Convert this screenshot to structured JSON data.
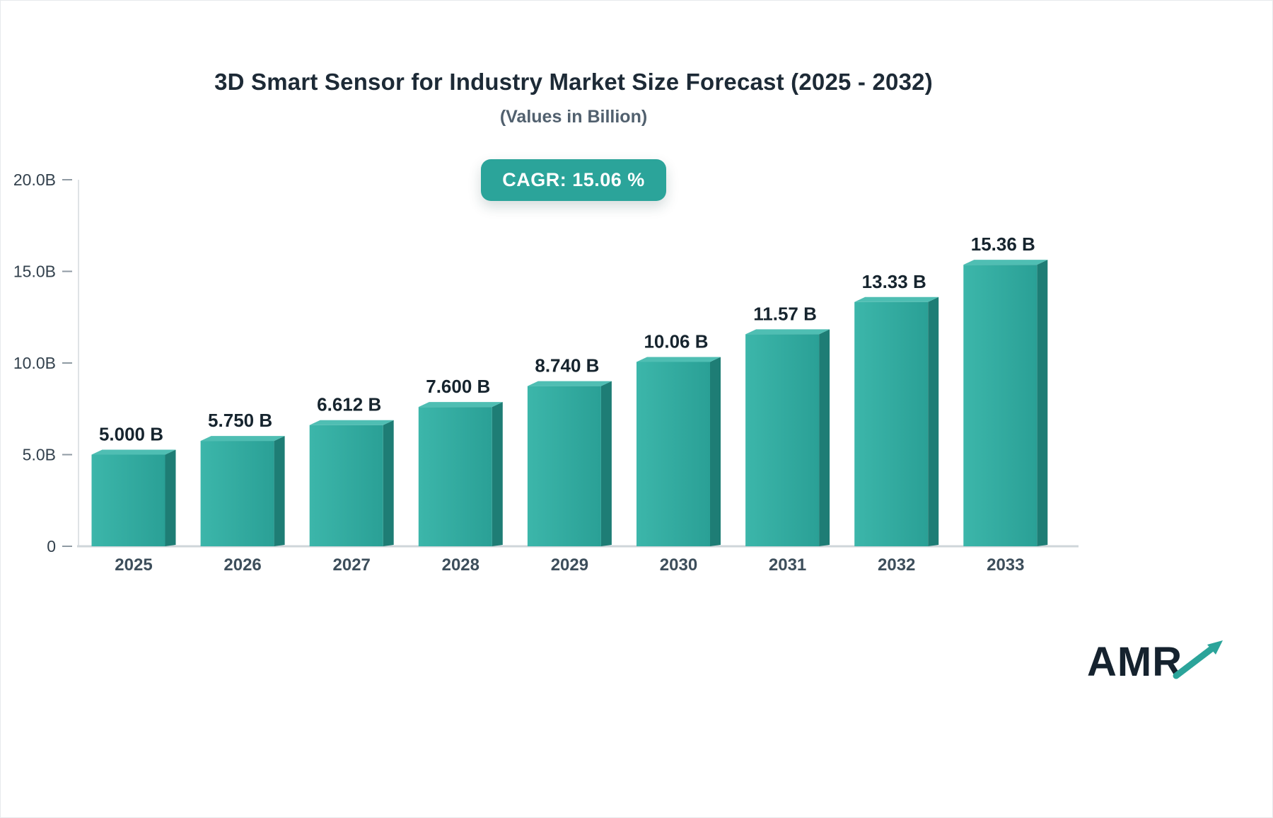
{
  "header": {
    "title": "3D Smart Sensor for Industry Market Size Forecast (2025 - 2032)",
    "subtitle": "(Values in Billion)"
  },
  "badge": {
    "label": "CAGR: 15.06 %"
  },
  "logo": {
    "text": "AMR"
  },
  "chart_data": {
    "type": "bar",
    "title": "3D Smart Sensor for Industry Market Size Forecast (2025 - 2032)",
    "subtitle": "(Values in Billion)",
    "categories": [
      "2025",
      "2026",
      "2027",
      "2028",
      "2029",
      "2030",
      "2031",
      "2032",
      "2033"
    ],
    "values": [
      5.0,
      5.75,
      6.612,
      7.6,
      8.74,
      10.06,
      11.57,
      13.33,
      15.36
    ],
    "value_labels": [
      "5.000 B",
      "5.750 B",
      "6.612 B",
      "7.600 B",
      "8.740 B",
      "10.06 B",
      "11.57 B",
      "13.33 B",
      "15.36 B"
    ],
    "xlabel": "",
    "ylabel": "",
    "ylim": [
      0,
      20
    ],
    "yticks": [
      {
        "value": 0,
        "label": "0"
      },
      {
        "value": 5,
        "label": "5.0B"
      },
      {
        "value": 10,
        "label": "10.0B"
      },
      {
        "value": 15,
        "label": "15.0B"
      },
      {
        "value": 20,
        "label": "20.0B"
      }
    ],
    "grid": false,
    "legend": "none",
    "colors": {
      "bar_front_light": "#3CB6AA",
      "bar_front_dark": "#2AA096",
      "bar_side": "#1E7D75",
      "bar_top": "#4FBEB3",
      "badge_bg": "#2BA49A",
      "axis_line": "#dfe3e6",
      "baseline": "#cfd6da",
      "tick": "#8f9aa3",
      "value_label": "#16242e",
      "year_label": "#3d4e5b",
      "ytick_label": "#33414d",
      "logo_text": "#15222e",
      "logo_arrow": "#2BA49A"
    }
  }
}
